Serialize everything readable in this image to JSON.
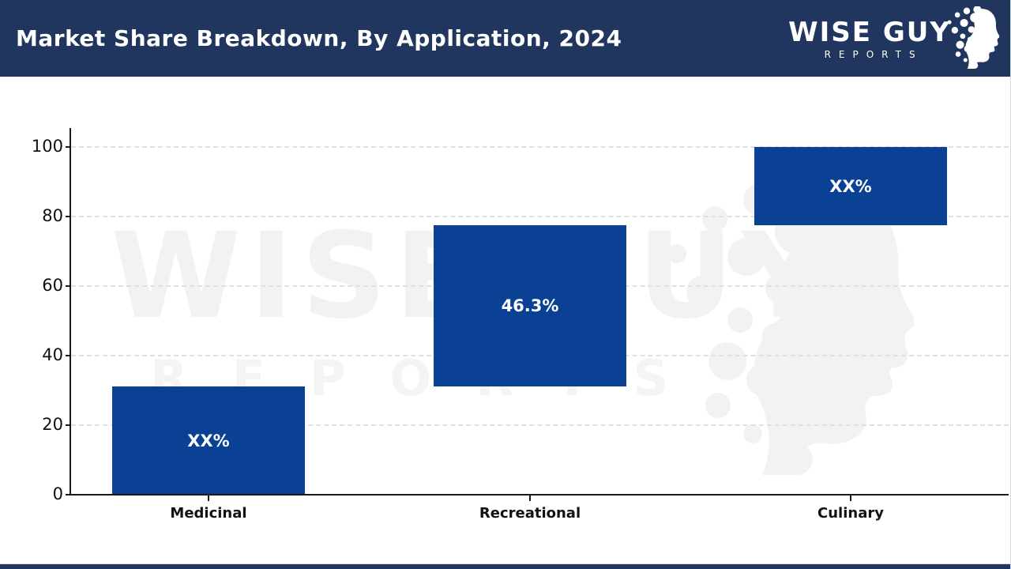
{
  "header": {
    "title": "Market Share Breakdown, By Application, 2024",
    "logo": {
      "wordmark": "WISE GUY",
      "subtext": "REPORTS"
    }
  },
  "watermark": {
    "wordmark": "WISE GUY",
    "subtext": "REPORTS"
  },
  "chart_data": {
    "type": "bar",
    "subtype": "waterfall",
    "title": "Market Share Breakdown, By Application, 2024",
    "categories": [
      "Medicinal",
      "Recreational",
      "Culinary"
    ],
    "segments": [
      {
        "category": "Medicinal",
        "start": 0,
        "end": 31.1,
        "value": 31.1,
        "label": "XX%"
      },
      {
        "category": "Recreational",
        "start": 31.1,
        "end": 77.4,
        "value": 46.3,
        "label": "46.3%"
      },
      {
        "category": "Culinary",
        "start": 77.4,
        "end": 100,
        "value": 22.6,
        "label": "XX%"
      }
    ],
    "xlabel": "",
    "ylabel": "",
    "yticks": [
      0,
      20,
      40,
      60,
      80,
      100
    ],
    "ylim": [
      0,
      105
    ],
    "grid": "horizontal-dashed",
    "legend": "none",
    "bar_color": "#0a4195",
    "bar_label_color": "#ffffff"
  },
  "colors": {
    "header_bg": "#21365f",
    "footer_bg": "#21365f",
    "bar": "#0a4195",
    "gridline": "#e0e0e0",
    "axis": "#1a1a1a",
    "watermark": "#f2f2f2"
  }
}
